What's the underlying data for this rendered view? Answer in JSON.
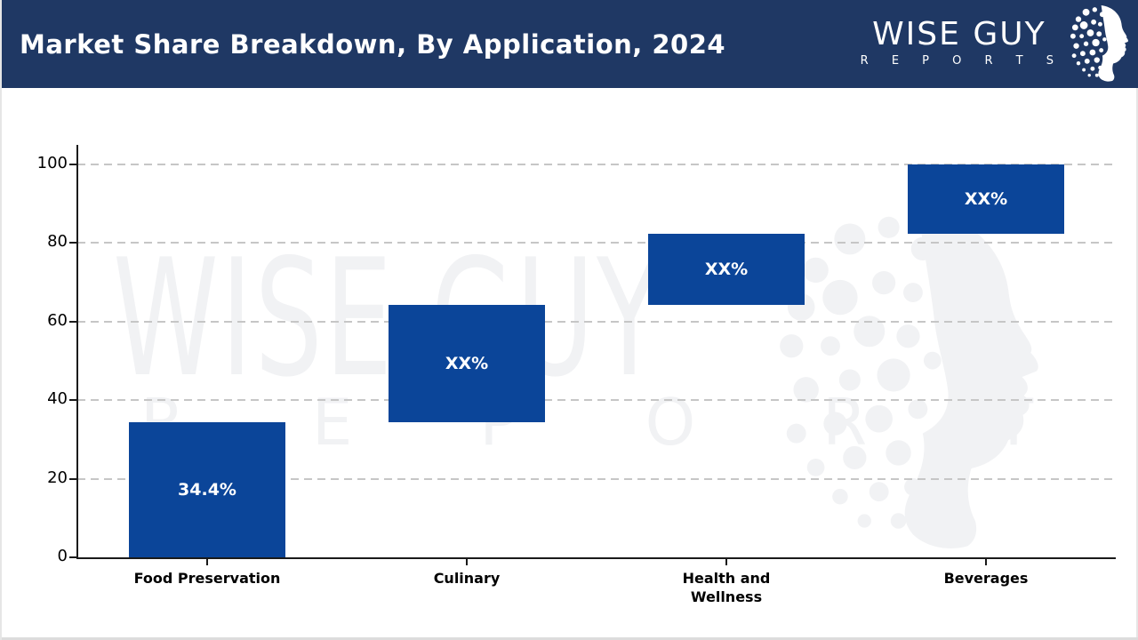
{
  "header": {
    "title": "Market Share Breakdown, By Application, 2024",
    "background_color": "#1F3864",
    "logo": {
      "line1": "WISE GUY",
      "line2": "R E P O R T S",
      "icon": "dotted-head-profile-icon"
    }
  },
  "watermark": {
    "line1": "WISE GUY",
    "line2": "R E P O R T S",
    "icon": "dotted-head-profile-icon",
    "color": "#f1f2f4"
  },
  "chart_data": {
    "type": "bar",
    "subtype": "floating-waterfall",
    "title": "",
    "xlabel": "",
    "ylabel": "",
    "categories": [
      "Food Preservation",
      "Culinary",
      "Health and\nWellness",
      "Beverages"
    ],
    "segments": [
      {
        "category": "Food Preservation",
        "start": 0,
        "end": 34.4,
        "label": "34.4%"
      },
      {
        "category": "Culinary",
        "start": 34.4,
        "end": 64.2,
        "label": "XX%"
      },
      {
        "category": "Health and Wellness",
        "start": 64.2,
        "end": 82.4,
        "label": "XX%"
      },
      {
        "category": "Beverages",
        "start": 82.4,
        "end": 100,
        "label": "XX%"
      }
    ],
    "yticks": [
      0,
      20,
      40,
      60,
      80,
      100
    ],
    "ylim": [
      0,
      104
    ],
    "grid": "horizontal-dashed",
    "legend": "none",
    "bar_color": "#0B4599",
    "bar_label_color": "#FFFFFF",
    "axis_color": "#1a1a1a",
    "gridline_color": "#c6c6c6"
  }
}
